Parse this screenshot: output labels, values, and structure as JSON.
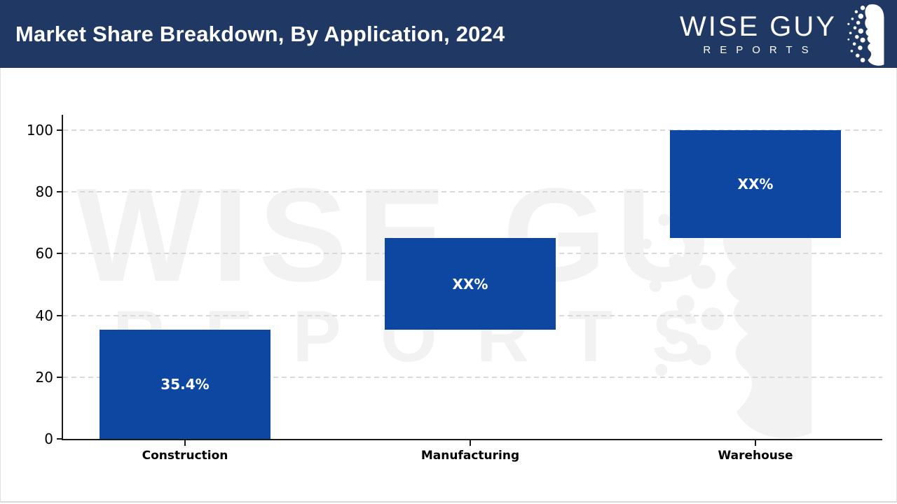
{
  "header": {
    "title": "Market Share Breakdown, By Application, 2024",
    "logo": {
      "line1": "WISE GUY",
      "line2": "REPORTS"
    }
  },
  "watermark": {
    "line1": "WISE GUY",
    "line2": "REPORTS"
  },
  "chart_data": {
    "type": "bar",
    "subtype": "waterfall",
    "title": "Market Share Breakdown, By Application, 2024",
    "categories": [
      "Construction",
      "Manufacturing",
      "Warehouse"
    ],
    "segments": [
      {
        "category": "Construction",
        "start": 0,
        "end": 35.4,
        "label": "35.4%"
      },
      {
        "category": "Manufacturing",
        "start": 35.4,
        "end": 65,
        "label": "XX%"
      },
      {
        "category": "Warehouse",
        "start": 65,
        "end": 100,
        "label": "XX%"
      }
    ],
    "xlabel": "",
    "ylabel": "",
    "ylim": [
      0,
      100
    ],
    "yticks": [
      0,
      20,
      40,
      60,
      80,
      100
    ],
    "grid": "horizontal-dashed",
    "legend": "none"
  },
  "colors": {
    "header_bg": "#1f3864",
    "bar": "#0d47a1",
    "grid": "#d9d9d9",
    "axis": "#1a1a1a",
    "bar_label": "#ffffff",
    "watermark": "#f2f2f2"
  }
}
